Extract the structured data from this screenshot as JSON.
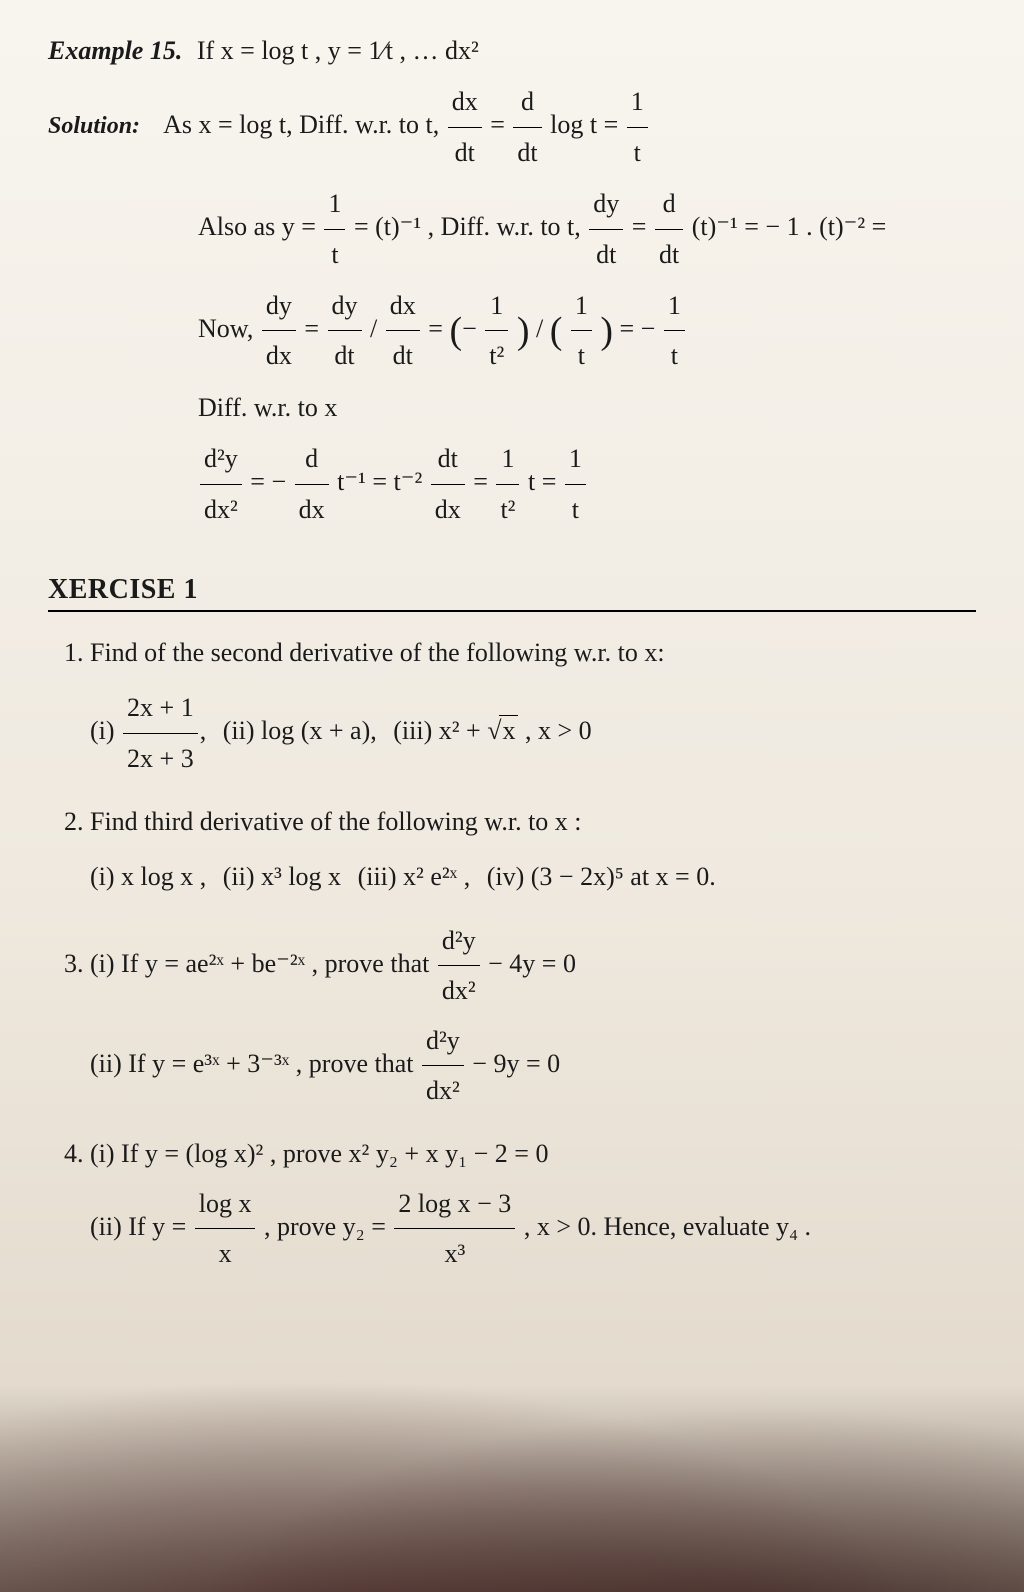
{
  "example": {
    "label": "Example 15.",
    "statement_frag": "If x = log t , y = 1⁄t , …  dx²"
  },
  "solution": {
    "label": "Solution:",
    "l1_pre": "As x = log t,  Diff. w.r. to t, ",
    "dx": "dx",
    "dt": "dt",
    "d": "d",
    "logt": "log t",
    "one": "1",
    "t": "t",
    "l2_pre": "Also as y = ",
    "l2_mid": " = (t)⁻¹ ,  Diff. w.r. to t, ",
    "dy": "dy",
    "l2_tail": " (t)⁻¹ = − 1 . (t)⁻² = ",
    "l3_pre": "Now, ",
    "dydx_num": "dy",
    "dydx_den": "dx",
    "dydt_num": "dy",
    "dydt_den": "dt",
    "dxdt_num": "dx",
    "dxdt_den": "dt",
    "neg1t2_num": "1",
    "neg1t2_den": "t²",
    "onet_num": "1",
    "onet_den": "t",
    "l4": "Diff. w.r. to x",
    "l5_num": "d²y",
    "l5_den": "dx²",
    "l5_mid1": " = − ",
    "l5_ddx_num": "d",
    "l5_ddx_den": "dx",
    "l5_mid2": " t⁻¹  =  t⁻² ",
    "l5_dtdx_num": "dt",
    "l5_dtdx_den": "dx",
    "l5_1t2_num": "1",
    "l5_1t2_den": "t²",
    "l5_tail_t": " t = ",
    "l5_last_num": "1",
    "l5_last_den": "t"
  },
  "exercise_title": "XERCISE 1",
  "q1": {
    "stem": "Find of the second derivative of the following w.r. to x:",
    "i_label": "(i) ",
    "i_num": "2x + 1",
    "i_den": "2x + 3",
    "i_comma": ",",
    "ii": "(ii) log (x + a),",
    "iii_pre": "(iii) x² + ",
    "iii_root": "x",
    "iii_tail": " ,  x > 0"
  },
  "q2": {
    "stem": "Find third derivative of the following w.r. to x :",
    "i": "(i) x log x ,",
    "ii": "(ii) x³ log x",
    "iii": "(iii) x² e²ˣ ,",
    "iv": "(iv) (3 − 2x)⁵ at x = 0."
  },
  "q3": {
    "i_pre": "(i) If y = ae²ˣ + be⁻²ˣ , prove that ",
    "i_num": "d²y",
    "i_den": "dx²",
    "i_tail": " − 4y = 0",
    "ii_pre": "(ii) If y = e³ˣ + 3⁻³ˣ , prove that ",
    "ii_num": "d²y",
    "ii_den": "dx²",
    "ii_tail": " − 9y = 0"
  },
  "q4": {
    "i": "(i) If y = (log x)² , prove  x² y₂ + x y₁ − 2 = 0",
    "ii_pre": "(ii) If y = ",
    "ii_f1_num": "log x",
    "ii_f1_den": "x",
    "ii_mid": " , prove  y₂ = ",
    "ii_f2_num": "2 log x − 3",
    "ii_f2_den": "x³",
    "ii_tail": " , x > 0.  Hence, evaluate y₄ ."
  }
}
